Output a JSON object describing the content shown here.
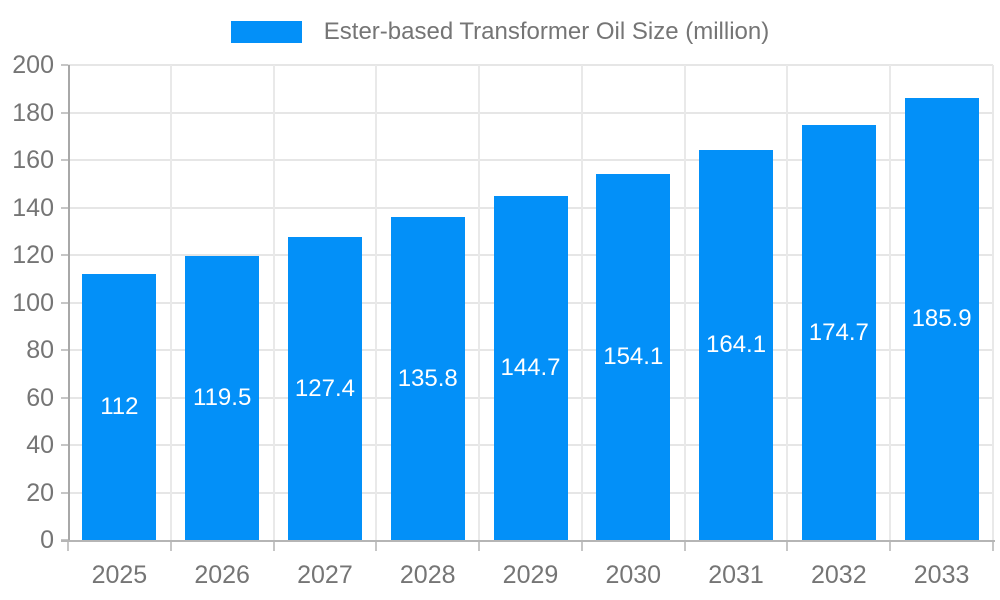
{
  "chart_data": {
    "type": "bar",
    "title": "Ester-based Transformer Oil Size (million)",
    "legend_position": "top",
    "categories": [
      "2025",
      "2026",
      "2027",
      "2028",
      "2029",
      "2030",
      "2031",
      "2032",
      "2033"
    ],
    "series": [
      {
        "name": "Ester-based Transformer Oil Size (million)",
        "values": [
          112,
          119.5,
          127.4,
          135.8,
          144.7,
          154.1,
          164.1,
          174.7,
          185.9
        ]
      }
    ],
    "xlabel": "",
    "ylabel": "",
    "ylim": [
      0,
      200
    ],
    "yticks": [
      0,
      20,
      40,
      60,
      80,
      100,
      120,
      140,
      160,
      180,
      200
    ],
    "grid": true,
    "bar_labels_inside": true,
    "colors": {
      "bar": "#0390F8",
      "bar_label_text": "#FFFFFF",
      "axis_text": "#757575",
      "grid_line": "#E6E6E6",
      "y_axis_line": "#A8A8A8",
      "x_axis_line": "#B5B5B5",
      "tick": "#C6C6C6",
      "background": "#FFFFFF"
    }
  }
}
